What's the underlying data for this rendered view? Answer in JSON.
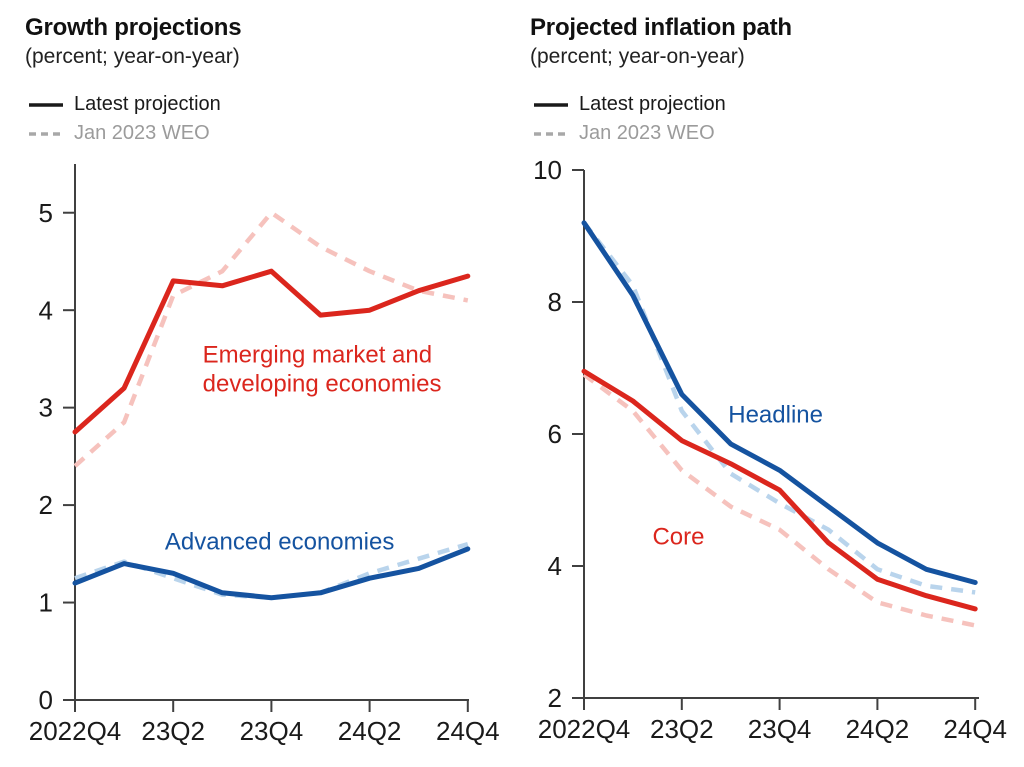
{
  "figure": {
    "background": "#ffffff",
    "text_color": "#1a1a1a",
    "axis_color": "#404040",
    "accent_red": "#db261d",
    "accent_blue": "#1553a0",
    "faded_red": "#f6c2bd",
    "faded_blue": "#b9d4ec",
    "legend_gray": "#a8a8a8"
  },
  "chart_data": [
    {
      "type": "line",
      "title": "Growth projections",
      "subtitle": "(percent; year-on-year)",
      "legend_position": "top-left",
      "legend": [
        {
          "label": "Latest projection",
          "color": "#1a1a1a",
          "dash": false
        },
        {
          "label": "Jan 2023 WEO",
          "color": "#a8a8a8",
          "dash": true
        }
      ],
      "x_categories": [
        "2022Q4",
        "23Q1",
        "23Q2",
        "23Q3",
        "23Q4",
        "24Q1",
        "24Q2",
        "24Q3",
        "24Q4"
      ],
      "x_tick_indices": [
        0,
        2,
        4,
        6,
        8
      ],
      "x_tick_labels": [
        "2022Q4",
        "23Q2",
        "23Q4",
        "24Q2",
        "24Q4"
      ],
      "ylim": [
        0,
        5.5
      ],
      "yticks": [
        0,
        1,
        2,
        3,
        4,
        5
      ],
      "grid": false,
      "series": [
        {
          "name": "Emerging market and developing economies - Latest projection",
          "color": "#db261d",
          "dash": false,
          "values": [
            2.75,
            3.2,
            4.3,
            4.25,
            4.4,
            3.95,
            4.0,
            4.2,
            4.35
          ]
        },
        {
          "name": "Emerging market and developing economies - Jan 2023 WEO",
          "color": "#f6c2bd",
          "dash": true,
          "values": [
            2.4,
            2.85,
            4.15,
            4.4,
            5.0,
            4.65,
            4.4,
            4.2,
            4.1
          ]
        },
        {
          "name": "Advanced economies - Latest projection",
          "color": "#1553a0",
          "dash": false,
          "values": [
            1.2,
            1.4,
            1.3,
            1.1,
            1.05,
            1.1,
            1.25,
            1.35,
            1.55
          ]
        },
        {
          "name": "Advanced economies - Jan 2023 WEO",
          "color": "#b9d4ec",
          "dash": true,
          "values": [
            1.25,
            1.42,
            1.25,
            1.08,
            1.05,
            1.1,
            1.3,
            1.45,
            1.6
          ]
        }
      ],
      "annotations": [
        {
          "lines": [
            "Emerging market and",
            "developing economies"
          ],
          "color": "#db261d",
          "x": 2.6,
          "y": 3.55
        },
        {
          "lines": [
            "Advanced economies"
          ],
          "color": "#1553a0",
          "x": 1.83,
          "y": 1.63
        }
      ]
    },
    {
      "type": "line",
      "title": "Projected inflation path",
      "subtitle": "(percent; year-on-year)",
      "legend_position": "top-left",
      "legend": [
        {
          "label": "Latest projection",
          "color": "#1a1a1a",
          "dash": false
        },
        {
          "label": "Jan 2023 WEO",
          "color": "#a8a8a8",
          "dash": true
        }
      ],
      "x_categories": [
        "2022Q4",
        "23Q1",
        "23Q2",
        "23Q3",
        "23Q4",
        "24Q1",
        "24Q2",
        "24Q3",
        "24Q4"
      ],
      "x_tick_indices": [
        0,
        2,
        4,
        6,
        8
      ],
      "x_tick_labels": [
        "2022Q4",
        "23Q2",
        "23Q4",
        "24Q2",
        "24Q4"
      ],
      "ylim": [
        2,
        10
      ],
      "yticks": [
        2,
        4,
        6,
        8,
        10
      ],
      "grid": false,
      "series": [
        {
          "name": "Headline - Latest projection",
          "color": "#1553a0",
          "dash": false,
          "values": [
            9.2,
            8.1,
            6.6,
            5.85,
            5.45,
            4.9,
            4.35,
            3.95,
            3.75
          ]
        },
        {
          "name": "Headline - Jan 2023 WEO",
          "color": "#b9d4ec",
          "dash": true,
          "values": [
            9.2,
            8.25,
            6.35,
            5.4,
            4.95,
            4.55,
            3.95,
            3.7,
            3.6
          ]
        },
        {
          "name": "Core - Latest projection",
          "color": "#db261d",
          "dash": false,
          "values": [
            6.95,
            6.5,
            5.9,
            5.55,
            5.15,
            4.35,
            3.8,
            3.55,
            3.35
          ]
        },
        {
          "name": "Core - Jan 2023 WEO",
          "color": "#f6c2bd",
          "dash": true,
          "values": [
            6.9,
            6.35,
            5.45,
            4.9,
            4.55,
            3.95,
            3.45,
            3.25,
            3.1
          ]
        }
      ],
      "annotations": [
        {
          "lines": [
            "Headline"
          ],
          "color": "#1553a0",
          "x": 2.95,
          "y": 6.3
        },
        {
          "lines": [
            "Core"
          ],
          "color": "#db261d",
          "x": 1.4,
          "y": 4.45
        }
      ]
    }
  ]
}
